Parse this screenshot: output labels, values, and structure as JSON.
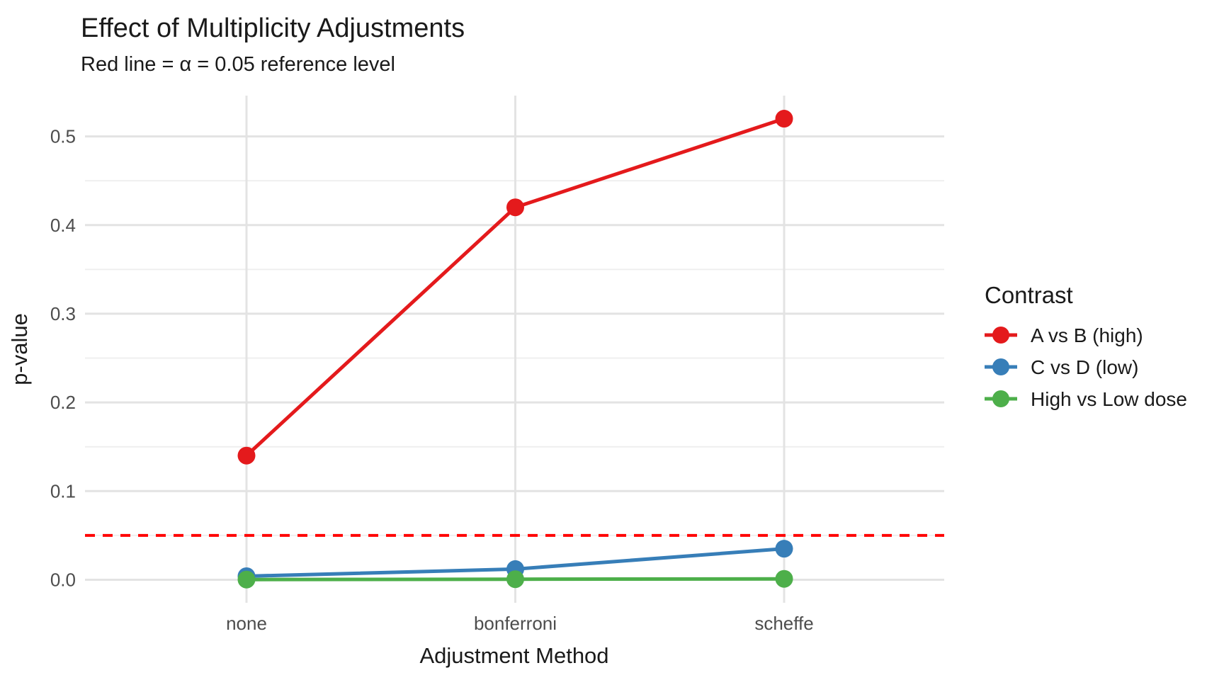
{
  "style": {
    "background": "#FFFFFF",
    "grid_major": "#E3E3E3",
    "grid_minor": "#EFEFEF",
    "tick_label_color": "#4D4D4D",
    "text_color": "#1A1A1A"
  },
  "chart_data": {
    "type": "line",
    "title": "Effect of Multiplicity Adjustments",
    "subtitle": "Red line = α = 0.05 reference level",
    "xlabel": "Adjustment Method",
    "ylabel": "p-value",
    "categories": [
      "none",
      "bonferroni",
      "scheffe"
    ],
    "series": [
      {
        "name": "A vs B (high)",
        "color": "#E41A1C",
        "values": [
          0.14,
          0.42,
          0.52
        ]
      },
      {
        "name": "C vs D (low)",
        "color": "#377EB8",
        "values": [
          0.004,
          0.012,
          0.035
        ]
      },
      {
        "name": "High vs Low dose",
        "color": "#4DAF4A",
        "values": [
          0.0002,
          0.0006,
          0.001
        ]
      }
    ],
    "reference_line": {
      "value": 0.05,
      "color": "#FF0000",
      "style": "dashed",
      "label": "α = 0.05"
    },
    "y_ticks": {
      "values": [
        0.0,
        0.1,
        0.2,
        0.3,
        0.4,
        0.5
      ],
      "labels": [
        "0.0",
        "0.1",
        "0.2",
        "0.3",
        "0.4",
        "0.5"
      ],
      "minor": [
        0.05,
        0.15,
        0.25,
        0.35,
        0.45
      ]
    },
    "ylim": [
      0,
      0.55
    ],
    "grid": true,
    "legend": {
      "title": "Contrast",
      "position": "right"
    }
  }
}
